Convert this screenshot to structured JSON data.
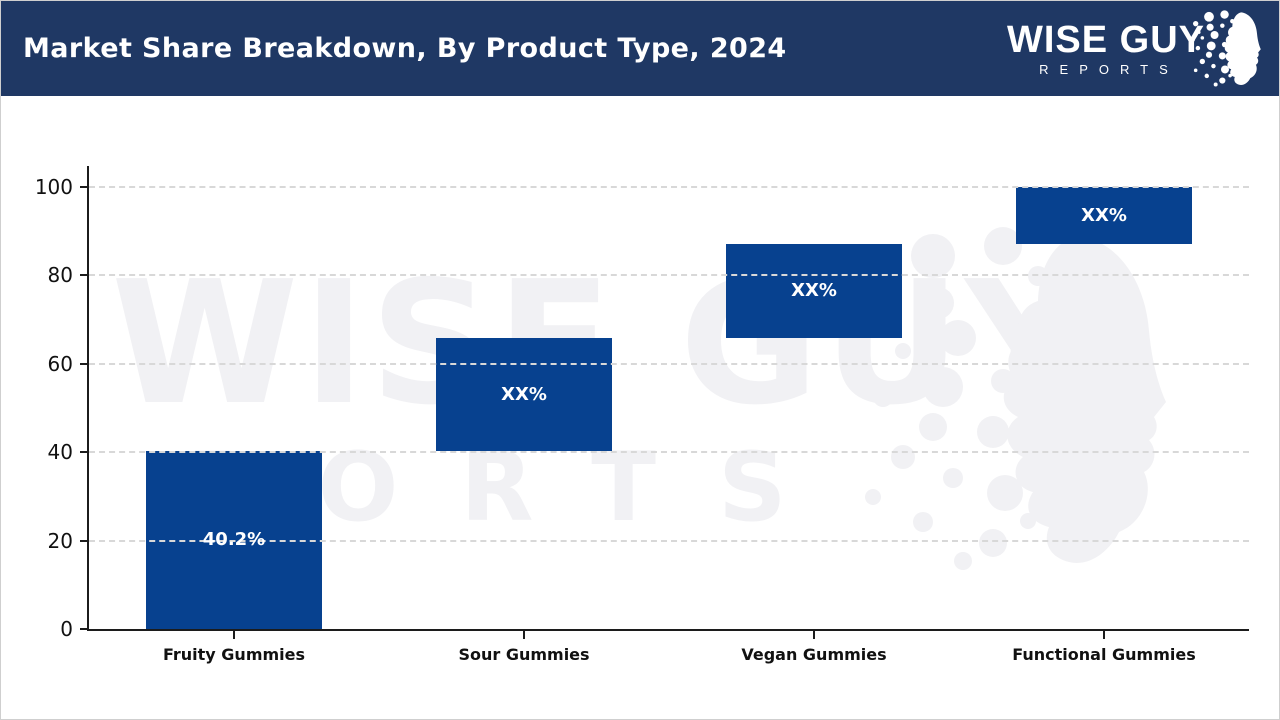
{
  "header": {
    "title": "Market Share Breakdown, By Product Type, 2024",
    "logo": {
      "line1": "WISE GUY",
      "line2": "REPORTS"
    },
    "bg_color": "#1f3864"
  },
  "watermark": {
    "line1": "WISE GUY",
    "line2": "PORTS"
  },
  "chart_data": {
    "type": "bar",
    "subtype": "waterfall",
    "title": "Market Share Breakdown, By Product Type, 2024",
    "categories": [
      "Fruity Gummies",
      "Sour Gummies",
      "Vegan Gummies",
      "Functional Gummies"
    ],
    "segments": [
      {
        "category": "Fruity Gummies",
        "start": 0,
        "end": 40.2,
        "label": "40.2%"
      },
      {
        "category": "Sour Gummies",
        "start": 40.2,
        "end": 65.8,
        "label": "XX%"
      },
      {
        "category": "Vegan Gummies",
        "start": 65.8,
        "end": 87.0,
        "label": "XX%"
      },
      {
        "category": "Functional Gummies",
        "start": 87.0,
        "end": 100.0,
        "label": "XX%"
      }
    ],
    "yticks": [
      0,
      20,
      40,
      60,
      80,
      100
    ],
    "ylim": [
      0,
      105
    ],
    "xlabel": "",
    "ylabel": "",
    "grid": "horizontal-dashed",
    "legend": "none",
    "bar_color": "#07418f",
    "bar_label_color": "#ffffff",
    "axis_color": "#1c1c1c",
    "gridline_color": "#d8d8d8"
  }
}
